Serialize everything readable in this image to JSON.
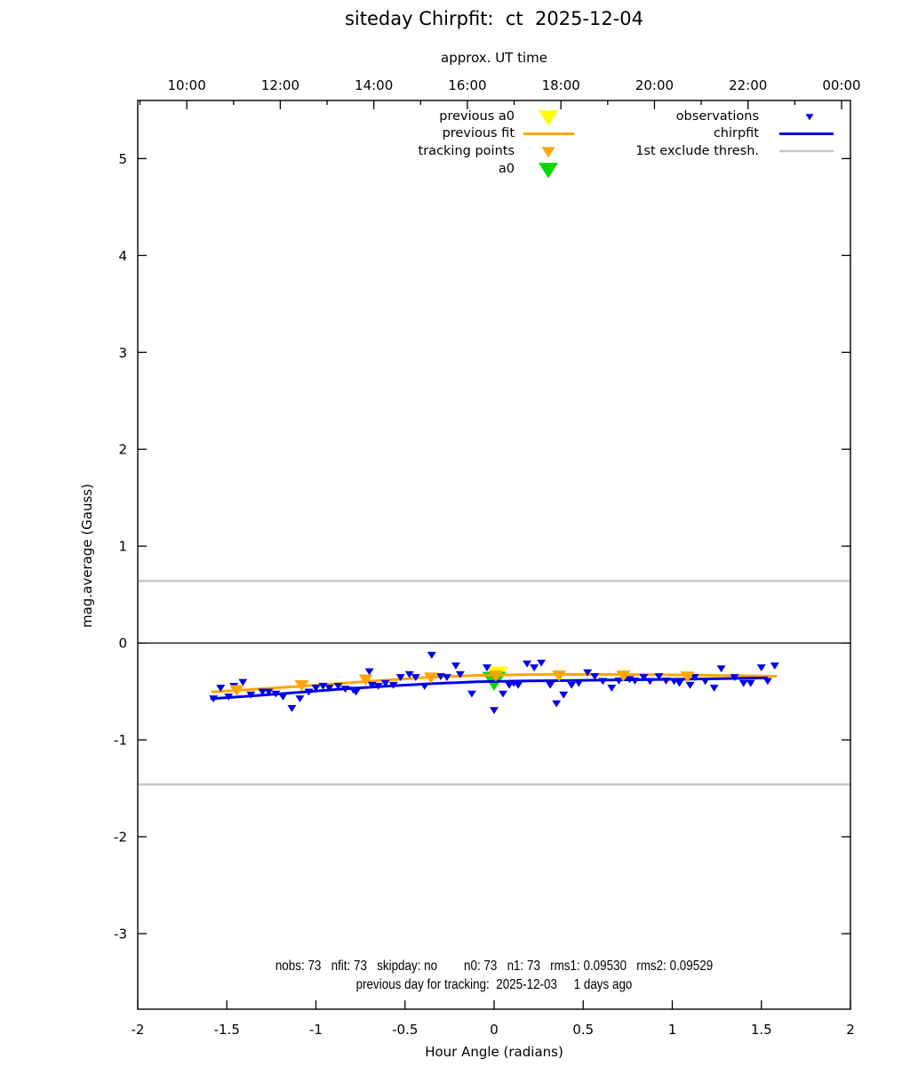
{
  "title": "siteday Chirpfit:  ct  2025-12-04",
  "axes": {
    "top": {
      "label": "approx. UT time",
      "major": [
        {
          "label": "10:00",
          "x": -1.725
        },
        {
          "label": "12:00",
          "x": -1.2
        },
        {
          "label": "14:00",
          "x": -0.675
        },
        {
          "label": "16:00",
          "x": -0.15
        },
        {
          "label": "18:00",
          "x": 0.375
        },
        {
          "label": "20:00",
          "x": 0.9
        },
        {
          "label": "22:00",
          "x": 1.425
        },
        {
          "label": "00:00",
          "x": 1.95
        }
      ],
      "minor": [
        -1.9875,
        -1.4625,
        -0.9375,
        -0.4125,
        0.1125,
        0.6375,
        1.1625,
        1.6875
      ]
    },
    "bottom": {
      "label": "Hour Angle (radians)",
      "ticks": [
        {
          "label": "-2",
          "x": -2
        },
        {
          "label": "-1.5",
          "x": -1.5
        },
        {
          "label": "-1",
          "x": -1
        },
        {
          "label": "-0.5",
          "x": -0.5
        },
        {
          "label": "0",
          "x": 0
        },
        {
          "label": "0.5",
          "x": 0.5
        },
        {
          "label": "1",
          "x": 1
        },
        {
          "label": "1.5",
          "x": 1.5
        },
        {
          "label": "2",
          "x": 2
        }
      ]
    },
    "left": {
      "label": "mag.average (Gauss)",
      "ticks": [
        {
          "label": "5",
          "y": 5
        },
        {
          "label": "4",
          "y": 4
        },
        {
          "label": "3",
          "y": 3
        },
        {
          "label": "2",
          "y": 2
        },
        {
          "label": "1",
          "y": 1
        },
        {
          "label": "0",
          "y": 0
        },
        {
          "label": "-1",
          "y": -1
        },
        {
          "label": "-2",
          "y": -2
        },
        {
          "label": "-3",
          "y": -3
        }
      ]
    }
  },
  "legend": {
    "left": [
      {
        "label": "previous a0",
        "swatch": "triangle-large",
        "color": "#ffff00"
      },
      {
        "label": "previous fit",
        "swatch": "line",
        "color": "#ffa500"
      },
      {
        "label": "tracking points",
        "swatch": "triangle-medium",
        "color": "#ffa500"
      },
      {
        "label": "a0",
        "swatch": "triangle-large",
        "color": "#00d800"
      }
    ],
    "right": [
      {
        "label": "observations",
        "swatch": "triangle-small",
        "color": "#0000e8"
      },
      {
        "label": "chirpfit",
        "swatch": "line",
        "color": "#0000e8"
      },
      {
        "label": "1st exclude thresh.",
        "swatch": "line",
        "color": "#c6c6c6"
      }
    ]
  },
  "stats": {
    "line1": "nobs: 73   nfit: 73   skipday: no        n0: 73   n1: 73   rms1: 0.09530   rms2: 0.09529",
    "line2": "previous day for tracking:  2025-12-03     1 days ago"
  },
  "colors": {
    "observations": "#0000e8",
    "chirpfit": "#0000e8",
    "previous_fit": "#ffa500",
    "tracking": "#ffa500",
    "previous_a0": "#ffff00",
    "a0": "#00d800",
    "threshold": "#c6c6c6",
    "zero_line": "#000000"
  },
  "chart_data": {
    "type": "scatter",
    "title": "siteday Chirpfit:  ct  2025-12-04",
    "xlabel": "Hour Angle (radians)",
    "ylabel": "mag.average (Gauss)",
    "x2label": "approx. UT time",
    "xlim": [
      -2,
      2
    ],
    "ylim": [
      -3.78,
      5.6
    ],
    "grid": false,
    "zero_axis": true,
    "exclude_thresholds": [
      0.64,
      -1.46
    ],
    "series": [
      {
        "name": "observations",
        "type": "scatter",
        "marker": "triangle-down",
        "points": [
          [
            -1.575,
            -0.57
          ],
          [
            -1.535,
            -0.46
          ],
          [
            -1.49,
            -0.55
          ],
          [
            -1.46,
            -0.44
          ],
          [
            -1.41,
            -0.4
          ],
          [
            -1.365,
            -0.53
          ],
          [
            -1.3,
            -0.5
          ],
          [
            -1.265,
            -0.5
          ],
          [
            -1.225,
            -0.52
          ],
          [
            -1.185,
            -0.55
          ],
          [
            -1.135,
            -0.67
          ],
          [
            -1.09,
            -0.57
          ],
          [
            -1.04,
            -0.5
          ],
          [
            -1.0,
            -0.46
          ],
          [
            -0.96,
            -0.44
          ],
          [
            -0.925,
            -0.46
          ],
          [
            -0.875,
            -0.44
          ],
          [
            -0.835,
            -0.47
          ],
          [
            -0.79,
            -0.48
          ],
          [
            -0.775,
            -0.5
          ],
          [
            -0.7,
            -0.29
          ],
          [
            -0.685,
            -0.43
          ],
          [
            -0.65,
            -0.44
          ],
          [
            -0.61,
            -0.41
          ],
          [
            -0.565,
            -0.43
          ],
          [
            -0.525,
            -0.35
          ],
          [
            -0.475,
            -0.32
          ],
          [
            -0.44,
            -0.35
          ],
          [
            -0.39,
            -0.44
          ],
          [
            -0.35,
            -0.12
          ],
          [
            -0.3,
            -0.34
          ],
          [
            -0.265,
            -0.35
          ],
          [
            -0.215,
            -0.23
          ],
          [
            -0.19,
            -0.32
          ],
          [
            -0.125,
            -0.52
          ],
          [
            -0.04,
            -0.25
          ],
          [
            0.0,
            -0.69
          ],
          [
            0.05,
            -0.52
          ],
          [
            0.085,
            -0.43
          ],
          [
            0.11,
            -0.41
          ],
          [
            0.135,
            -0.43
          ],
          [
            0.185,
            -0.21
          ],
          [
            0.225,
            -0.25
          ],
          [
            0.265,
            -0.2
          ],
          [
            0.315,
            -0.43
          ],
          [
            0.35,
            -0.62
          ],
          [
            0.39,
            -0.53
          ],
          [
            0.435,
            -0.43
          ],
          [
            0.475,
            -0.41
          ],
          [
            0.525,
            -0.3
          ],
          [
            0.565,
            -0.34
          ],
          [
            0.61,
            -0.39
          ],
          [
            0.66,
            -0.46
          ],
          [
            0.7,
            -0.385
          ],
          [
            0.76,
            -0.37
          ],
          [
            0.79,
            -0.385
          ],
          [
            0.84,
            -0.35
          ],
          [
            0.875,
            -0.39
          ],
          [
            0.925,
            -0.34
          ],
          [
            0.965,
            -0.385
          ],
          [
            1.01,
            -0.39
          ],
          [
            1.04,
            -0.41
          ],
          [
            1.1,
            -0.43
          ],
          [
            1.125,
            -0.35
          ],
          [
            1.185,
            -0.39
          ],
          [
            1.235,
            -0.46
          ],
          [
            1.275,
            -0.26
          ],
          [
            1.35,
            -0.35
          ],
          [
            1.4,
            -0.41
          ],
          [
            1.44,
            -0.41
          ],
          [
            1.5,
            -0.25
          ],
          [
            1.535,
            -0.39
          ],
          [
            1.575,
            -0.23
          ]
        ]
      },
      {
        "name": "chirpfit",
        "type": "line",
        "points": [
          [
            -1.585,
            -0.575
          ],
          [
            -1.35,
            -0.545
          ],
          [
            -1.1,
            -0.51
          ],
          [
            -0.85,
            -0.475
          ],
          [
            -0.6,
            -0.445
          ],
          [
            -0.35,
            -0.42
          ],
          [
            -0.1,
            -0.4
          ],
          [
            0.15,
            -0.392
          ],
          [
            0.4,
            -0.387
          ],
          [
            0.65,
            -0.382
          ],
          [
            0.9,
            -0.377
          ],
          [
            1.15,
            -0.371
          ],
          [
            1.35,
            -0.366
          ],
          [
            1.53,
            -0.36
          ]
        ]
      },
      {
        "name": "previous fit",
        "type": "line",
        "points": [
          [
            -1.58,
            -0.505
          ],
          [
            -1.35,
            -0.478
          ],
          [
            -1.1,
            -0.448
          ],
          [
            -0.85,
            -0.415
          ],
          [
            -0.6,
            -0.383
          ],
          [
            -0.35,
            -0.352
          ],
          [
            -0.1,
            -0.335
          ],
          [
            0.15,
            -0.327
          ],
          [
            0.4,
            -0.324
          ],
          [
            0.65,
            -0.324
          ],
          [
            0.9,
            -0.327
          ],
          [
            1.15,
            -0.332
          ],
          [
            1.4,
            -0.338
          ],
          [
            1.58,
            -0.343
          ]
        ]
      },
      {
        "name": "tracking points",
        "type": "scatter",
        "marker": "triangle-down",
        "points": [
          [
            -1.445,
            -0.48
          ],
          [
            -1.08,
            -0.43
          ],
          [
            -0.72,
            -0.37
          ],
          [
            -0.355,
            -0.35
          ],
          [
            0.01,
            -0.33
          ],
          [
            0.365,
            -0.33
          ],
          [
            0.725,
            -0.33
          ],
          [
            1.085,
            -0.34
          ]
        ]
      },
      {
        "name": "previous a0",
        "type": "scatter",
        "marker": "triangle-down",
        "points": [
          [
            0.02,
            -0.31
          ]
        ]
      },
      {
        "name": "a0",
        "type": "scatter",
        "marker": "triangle-down",
        "points": [
          [
            0.0,
            -0.375
          ]
        ]
      }
    ]
  }
}
